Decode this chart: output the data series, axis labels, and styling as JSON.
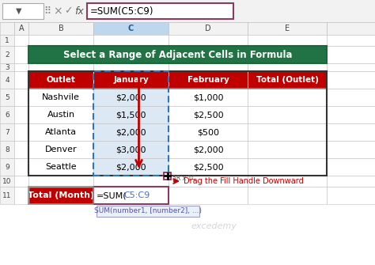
{
  "title": "Select a Range of Adjacent Cells in Formula",
  "title_bg": "#217346",
  "title_color": "#FFFFFF",
  "formula_bar_text": "=SUM(C5:C9)",
  "formula_bar_highlight": "#8B3A62",
  "col_headers": [
    "A",
    "B",
    "C",
    "D",
    "E"
  ],
  "table_headers": [
    "Outlet",
    "January",
    "February",
    "Total (Outlet)"
  ],
  "table_header_bg": "#C00000",
  "table_header_color": "#FFFFFF",
  "outlets": [
    "Nashvile",
    "Austin",
    "Atlanta",
    "Denver",
    "Seattle"
  ],
  "january": [
    "$2,000",
    "$1,500",
    "$2,000",
    "$3,000",
    "$2,000"
  ],
  "february": [
    "$1,000",
    "$2,500",
    "$500",
    "$2,000",
    "$2,500"
  ],
  "total_month_label": "Total (Month)",
  "total_month_formula_black": "=SUM(",
  "total_month_formula_blue": "C5:C9",
  "sum_tooltip": "SUM(number1, [number2], ...)",
  "drag_text": "Drag the Fill Handle Downward",
  "selected_col_bg": "#DCE9F5",
  "dashed_border_color": "#2E75B6",
  "arrow_color": "#C00000",
  "cell_bg": "#FFFFFF",
  "grid_color": "#C0C0C0",
  "row_header_bg": "#F2F2F2",
  "col_header_bg": "#F2F2F2",
  "col_c_header_bg": "#BDD7EE",
  "top_bar_bg": "#F2F2F2",
  "watermark": "excedemy",
  "formula_bar_box_color": "#8B3A62",
  "total_row_label_bg": "#C00000",
  "formula_cell_border": "#8B3A62",
  "tooltip_bg": "#E8F0F8",
  "tooltip_border": "#A0A0C0",
  "tooltip_text_color": "#5555AA"
}
